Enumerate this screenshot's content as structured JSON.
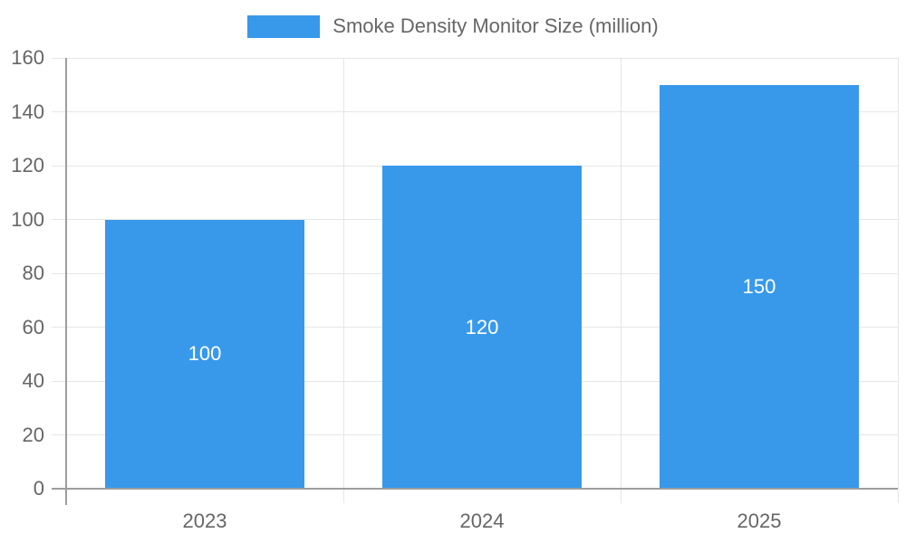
{
  "legend": {
    "label": "Smoke Density Monitor Size (million)"
  },
  "colors": {
    "bar": "#3899EB",
    "gridline": "#e6e6e6",
    "axis_line": "#9e9e9e",
    "tick_label": "#666666",
    "data_label": "#ffffff",
    "background": "#ffffff"
  },
  "chart_data": {
    "type": "bar",
    "categories": [
      "2023",
      "2024",
      "2025"
    ],
    "series": [
      {
        "name": "Smoke Density Monitor Size (million)",
        "values": [
          100,
          120,
          150
        ]
      }
    ],
    "data_labels": [
      "100",
      "120",
      "150"
    ],
    "title": "",
    "xlabel": "",
    "ylabel": "",
    "ylim": [
      0,
      160
    ],
    "y_ticks": [
      0,
      20,
      40,
      60,
      80,
      100,
      120,
      140,
      160
    ],
    "grid": true,
    "legend_position": "top",
    "data_label_position": "inside-center"
  }
}
